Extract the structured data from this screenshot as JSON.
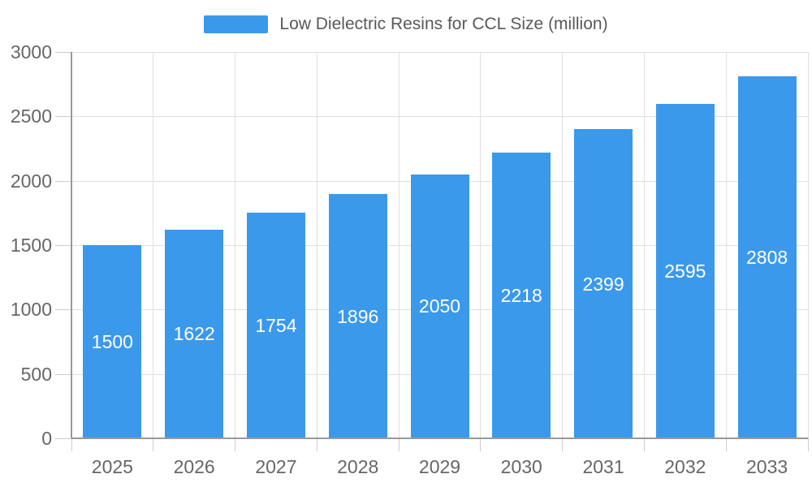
{
  "chart_data": {
    "type": "bar",
    "title": "Low Dielectric Resins for CCL Size (million)",
    "legend_label": "Low Dielectric Resins for CCL Size (million)",
    "legend_position": "top-center",
    "categories": [
      "2025",
      "2026",
      "2027",
      "2028",
      "2029",
      "2030",
      "2031",
      "2032",
      "2033"
    ],
    "values": [
      1500,
      1622,
      1754,
      1896,
      2050,
      2218,
      2399,
      2595,
      2808
    ],
    "xlabel": "",
    "ylabel": "",
    "ylim": [
      0,
      3000
    ],
    "yticks": [
      0,
      500,
      1000,
      1500,
      2000,
      2500,
      3000
    ],
    "grid": true,
    "bar_value_labels": "white, centered vertically inside bars"
  },
  "colors": {
    "bar": "#3B99EC",
    "grid": "#E0E0E0",
    "axis": "#999999",
    "tick": "#CCCCCC",
    "axis_label_text": "#666666",
    "legend_text": "#595959",
    "bar_label_text": "#FFFFFF",
    "background": "#FFFFFF"
  }
}
